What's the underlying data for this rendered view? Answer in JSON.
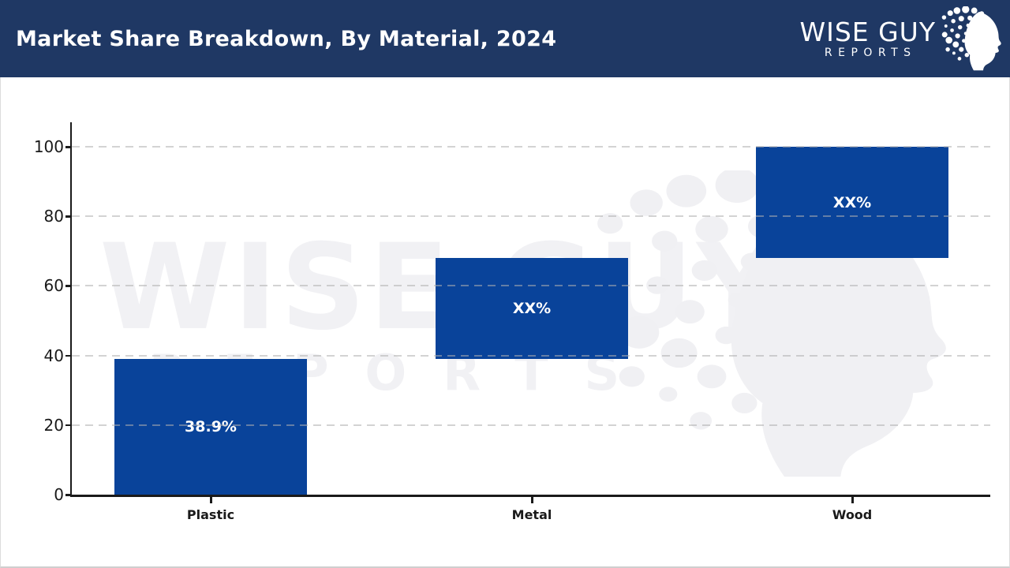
{
  "header": {
    "title": "Market Share Breakdown, By Material, 2024",
    "bg_color": "#1f3864"
  },
  "logo": {
    "line1": "WISE GUY",
    "line2": "REPORTS",
    "head_icon": "dotted-head-profile"
  },
  "watermark": {
    "line1": "WISE GUY",
    "line2": "REPORTS",
    "head_icon": "dotted-head-profile"
  },
  "chart_data": {
    "type": "bar",
    "subtype": "waterfall",
    "title": "Market Share Breakdown, By Material, 2024",
    "xlabel": "",
    "ylabel": "",
    "categories": [
      "Plastic",
      "Metal",
      "Wood"
    ],
    "series": [
      {
        "name": "Market Share (%)",
        "segments": [
          {
            "category": "Plastic",
            "start": 0,
            "end": 38.9,
            "label": "38.9%"
          },
          {
            "category": "Metal",
            "start": 39.1,
            "end": 68.0,
            "label": "XX%"
          },
          {
            "category": "Wood",
            "start": 68.0,
            "end": 100.0,
            "label": "XX%"
          }
        ]
      }
    ],
    "yticks": [
      0,
      20,
      40,
      60,
      80,
      100
    ],
    "ylim": [
      0,
      107
    ],
    "grid": "horizontal-dashed",
    "legend": "none",
    "bar_color": "#09439a",
    "bar_label_color": "#ffffff"
  }
}
